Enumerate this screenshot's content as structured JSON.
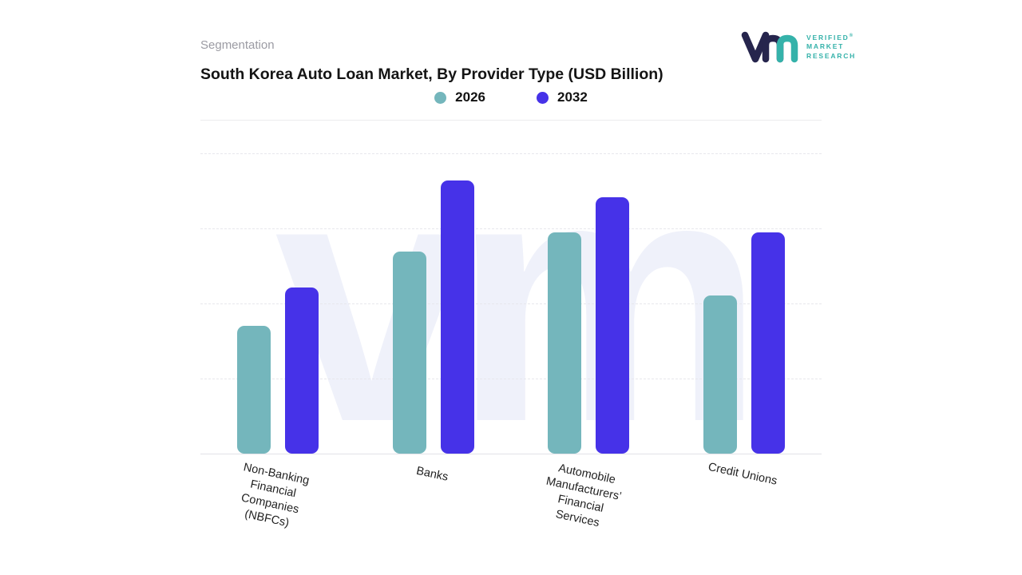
{
  "page": {
    "eyebrow": "Segmentation"
  },
  "logo": {
    "lines": [
      "VERIFIED",
      "MARKET",
      "RESEARCH"
    ],
    "reg": "®"
  },
  "watermark": {
    "text": "vm"
  },
  "chart_data": {
    "type": "bar",
    "title": "South Korea Auto Loan Market, By Provider Type (USD Billion)",
    "categories": [
      "Non-Banking Financial Companies (NBFCs)",
      "Banks",
      "Automobile Manufacturers’ Financial Services",
      "Credit Unions"
    ],
    "category_label_lines": [
      [
        "Non-Banking",
        "Financial",
        "Companies",
        "(NBFCs)"
      ],
      [
        "Banks"
      ],
      [
        "Automobile",
        "Manufacturers’",
        "Financial",
        "Services"
      ],
      [
        "Credit Unions"
      ]
    ],
    "series": [
      {
        "name": "2026",
        "color": "#74b6bc",
        "values": [
          47,
          74,
          81,
          58
        ]
      },
      {
        "name": "2032",
        "color": "#4632e8",
        "values": [
          61,
          100,
          94,
          81
        ]
      }
    ],
    "xlabel": "",
    "ylabel": "",
    "ylim": [
      0,
      110
    ],
    "grid": "horizontal-dashed",
    "legend_position": "top-center",
    "value_axis_tick_labels_visible": false
  }
}
